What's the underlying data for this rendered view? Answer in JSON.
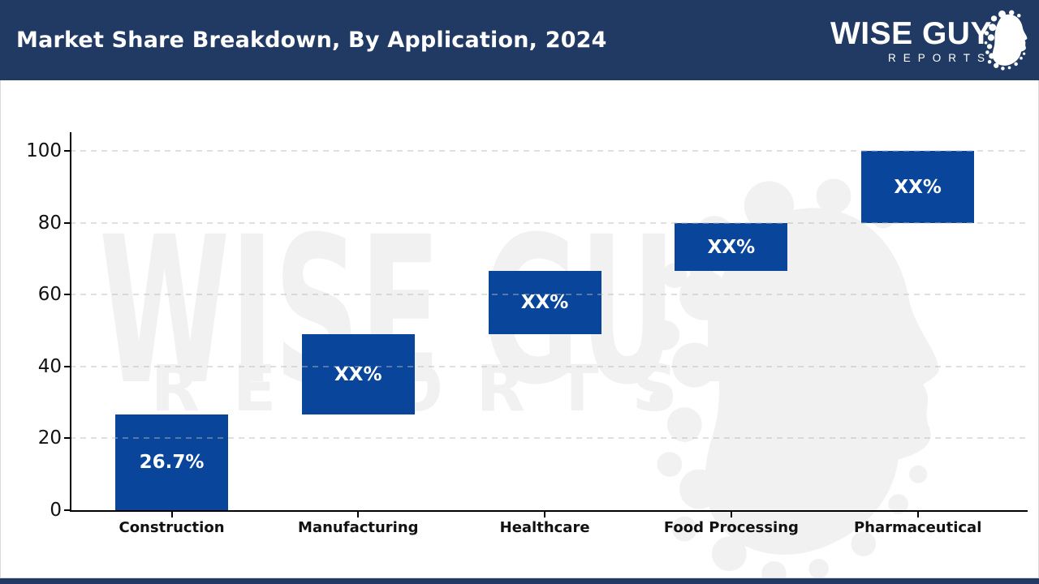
{
  "header": {
    "title": "Market Share Breakdown, By Application, 2024",
    "logo": {
      "wordmark": "WISE GUY",
      "tagline": "REPORTS"
    }
  },
  "watermark": {
    "wordmark": "WISE GUY",
    "tagline": "REPORTS"
  },
  "colors": {
    "header_bg": "#213a64",
    "footer_bg": "#213a64",
    "bar": "#08459b",
    "bar_label": "#ffffff",
    "axis": "#000000",
    "grid": "rgba(185,185,185,0.45)",
    "watermark": "#f1f1f1"
  },
  "chart_data": {
    "type": "bar",
    "subtype": "waterfall",
    "title": "Market Share Breakdown, By Application, 2024",
    "categories": [
      "Construction",
      "Manufacturing",
      "Healthcare",
      "Food Processing",
      "Pharmaceutical"
    ],
    "series": [
      {
        "name": "Market Share",
        "segments": [
          {
            "category": "Construction",
            "start": 0,
            "end": 26.7,
            "label": "26.7%"
          },
          {
            "category": "Manufacturing",
            "start": 26.7,
            "end": 48.9,
            "label": "XX%"
          },
          {
            "category": "Healthcare",
            "start": 48.9,
            "end": 66.5,
            "label": "XX%"
          },
          {
            "category": "Food Processing",
            "start": 66.5,
            "end": 79.9,
            "label": "XX%"
          },
          {
            "category": "Pharmaceutical",
            "start": 79.9,
            "end": 100,
            "label": "XX%"
          }
        ]
      }
    ],
    "xlabel": "",
    "ylabel": "",
    "yticks": [
      0,
      20,
      40,
      60,
      80,
      100
    ],
    "ylim": [
      0,
      105
    ],
    "grid": "horizontal-dashed",
    "legend": "none"
  }
}
